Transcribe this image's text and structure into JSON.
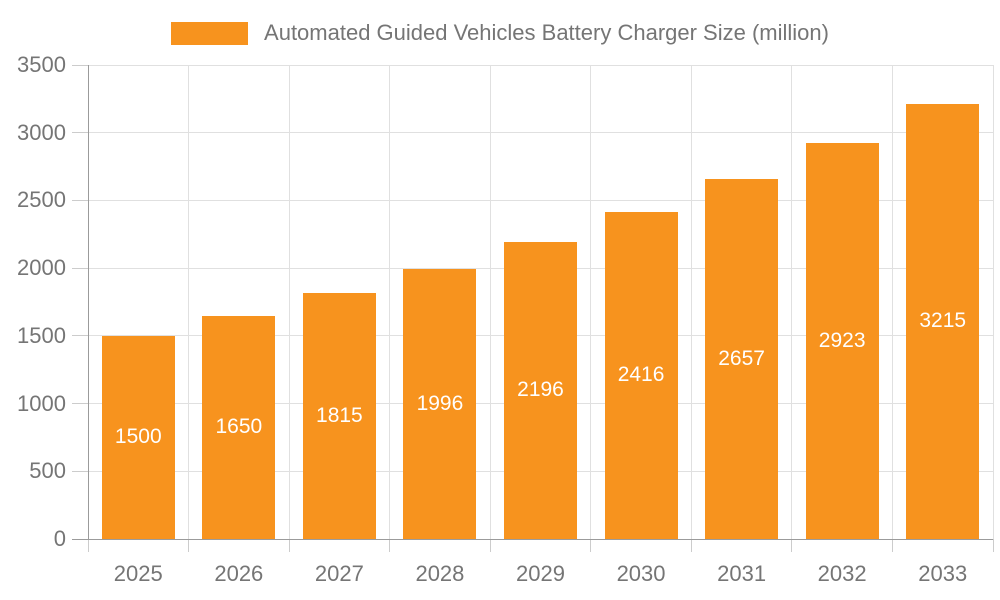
{
  "legend": {
    "label": "Automated Guided Vehicles Battery Charger Size (million)",
    "swatch_icon": "legend-color-swatch"
  },
  "colors": {
    "bar": "#F7931E",
    "bar_label": "#FFFFFF",
    "axis": "#9B9B9B",
    "grid": "#E0E0E0",
    "tick": "#CCCCCC",
    "text": "#757575"
  },
  "chart_data": {
    "type": "bar",
    "title": "Automated Guided Vehicles Battery Charger Size (million)",
    "categories": [
      "2025",
      "2026",
      "2027",
      "2028",
      "2029",
      "2030",
      "2031",
      "2032",
      "2033"
    ],
    "values": [
      1500,
      1650,
      1815,
      1996,
      2196,
      2416,
      2657,
      2923,
      3215
    ],
    "series_name": "Automated Guided Vehicles Battery Charger Size (million)",
    "xlabel": "",
    "ylabel": "",
    "ylim": [
      0,
      3500
    ],
    "ytick_step": 500,
    "ytick_labels": [
      "0",
      "500",
      "1000",
      "1500",
      "2000",
      "2500",
      "3000",
      "3500"
    ],
    "grid": true,
    "legend_position": "top",
    "value_labels_position": "inside-center"
  }
}
